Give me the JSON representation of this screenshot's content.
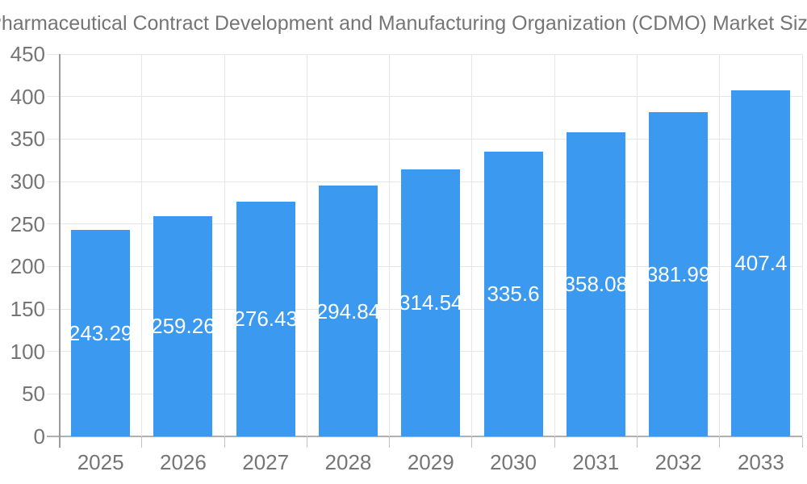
{
  "chart_data": {
    "type": "bar",
    "title": "Pharmaceutical Contract Development and Manufacturing Organization (CDMO) Market Size",
    "categories": [
      "2025",
      "2026",
      "2027",
      "2028",
      "2029",
      "2030",
      "2031",
      "2032",
      "2033"
    ],
    "values": [
      243.29,
      259.26,
      276.43,
      294.84,
      314.54,
      335.6,
      358.08,
      381.99,
      407.4
    ],
    "value_labels": [
      "243.29",
      "259.26",
      "276.43",
      "294.84",
      "314.54",
      "335.6",
      "358.08",
      "381.99",
      "407.4"
    ],
    "xlabel": "",
    "ylabel": "",
    "ylim": [
      0,
      450
    ],
    "yticks": [
      "0",
      "50",
      "100",
      "150",
      "200",
      "250",
      "300",
      "350",
      "400",
      "450"
    ],
    "grid": "on",
    "legend_position": "none",
    "colors": {
      "bar": "#3c99f0",
      "value_label": "#ffffff",
      "axis_text": "#757575",
      "title_text": "#757575",
      "gridline": "#e6e6e6",
      "baseline": "#b0b0b0",
      "axis_line": "#9b9b9b"
    }
  }
}
